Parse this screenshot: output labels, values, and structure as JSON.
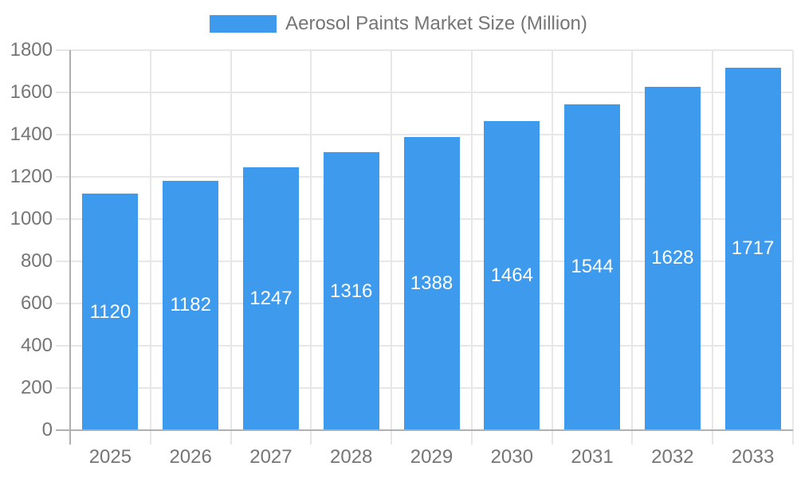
{
  "chart_data": {
    "type": "bar",
    "title": "Aerosol Paints Market Size (Million)",
    "legend": [
      "Aerosol Paints Market Size (Million)"
    ],
    "legend_position": "top-center",
    "categories": [
      "2025",
      "2026",
      "2027",
      "2028",
      "2029",
      "2030",
      "2031",
      "2032",
      "2033"
    ],
    "values": [
      1120,
      1182,
      1247,
      1316,
      1388,
      1464,
      1544,
      1628,
      1717
    ],
    "value_labels_shown_inside_bars": true,
    "xlabel": "",
    "ylabel": "",
    "ylim": [
      0,
      1800
    ],
    "ytick_step": 200,
    "ytick_labels": [
      "0",
      "200",
      "400",
      "600",
      "800",
      "1000",
      "1200",
      "1400",
      "1600",
      "1800"
    ],
    "grid": true,
    "colors": {
      "bar": "#3E9AEC",
      "axis_text": "#757575",
      "grid_line": "#E7E7E7",
      "axis_line": "#B0B0B0",
      "value_label": "#FFFFFF",
      "background": "#FFFFFF"
    }
  }
}
